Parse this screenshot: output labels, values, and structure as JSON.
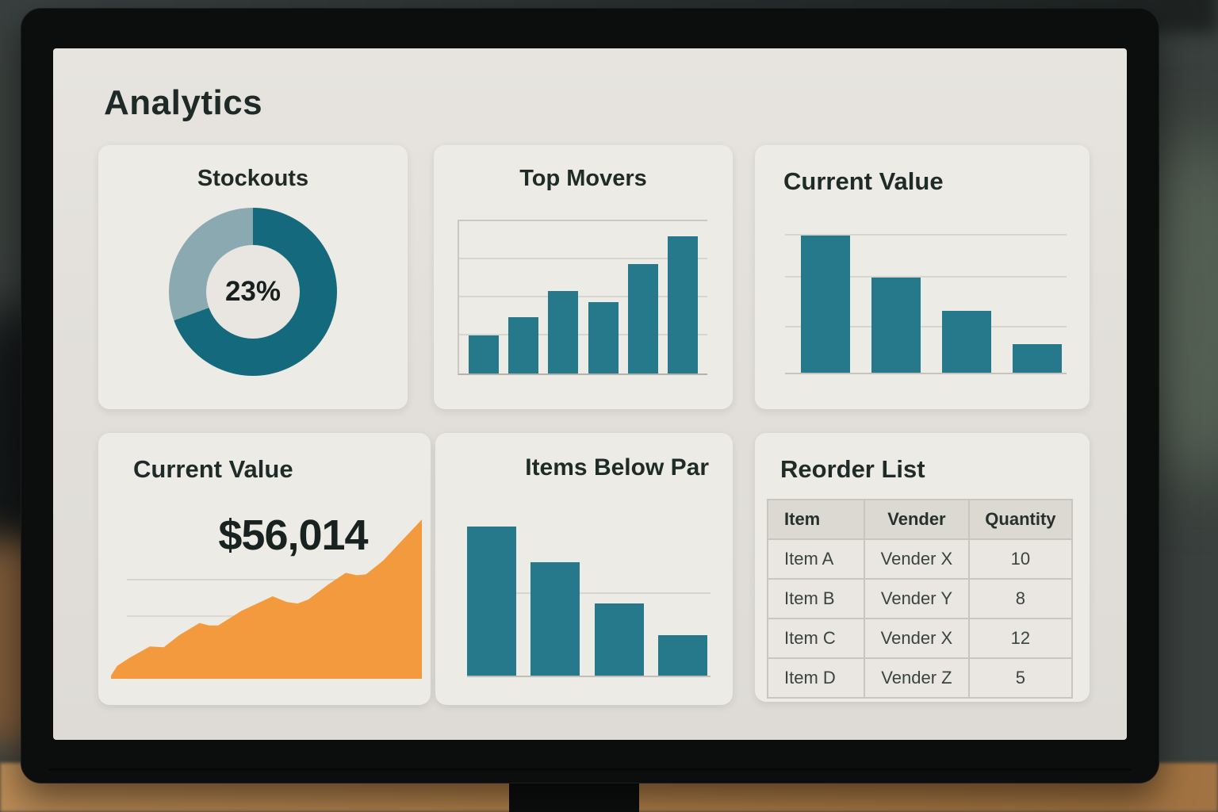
{
  "page": {
    "title": "Analytics"
  },
  "theme": {
    "screen_bg": "#e2dfda",
    "card_bg": "#edebe6",
    "title_color": "#1f2b28",
    "bar_teal": "#26798b",
    "donut_dark_teal": "#14697c",
    "donut_light_slate": "#8aa9b1",
    "area_orange": "#f29a3d",
    "table_header_bg": "#dcd9d3",
    "table_border": "#c9c6c0",
    "bezel_black": "#0c0e0d",
    "desk_wood": "#b28149"
  },
  "cards": {
    "stockouts": {
      "title": "Stockouts",
      "center_label": "23%"
    },
    "top_movers": {
      "title": "Top Movers"
    },
    "current_value_bars": {
      "title": "Current Value"
    },
    "current_value_trend": {
      "title": "Current Value",
      "amount": "$56,014"
    },
    "items_below_par": {
      "title": "Items Below Par"
    },
    "reorder_list": {
      "title": "Reorder List"
    }
  },
  "chart_data": [
    {
      "id": "stockouts_donut",
      "type": "donut",
      "title": "Stockouts",
      "center_label": "23%",
      "labeled_value_pct": 23,
      "start_angle_deg": 0,
      "primary_sweep_deg": 250,
      "segments": [
        {
          "name": "primary",
          "visual_pct": 69,
          "color": "#14697c"
        },
        {
          "name": "secondary",
          "visual_pct": 31,
          "color": "#8aa9b1"
        }
      ]
    },
    {
      "id": "top_movers_bars",
      "type": "bar",
      "title": "Top Movers",
      "values_pct": [
        25,
        37,
        54,
        47,
        72,
        90
      ],
      "ylim": [
        0,
        100
      ],
      "grid": true,
      "gridline_levels_pct": [
        25,
        50,
        75
      ],
      "bar_color": "#26798b"
    },
    {
      "id": "current_value_bars",
      "type": "bar",
      "title": "Current Value",
      "values_pct": [
        91,
        63,
        41,
        19
      ],
      "ylim": [
        0,
        100
      ],
      "grid": true,
      "gridline_levels_pct": [
        30,
        63,
        91
      ],
      "bar_color": "#26798b"
    },
    {
      "id": "current_value_trend",
      "type": "area",
      "title": "Current Value",
      "value_label": "$56,014",
      "fill_color": "#f29a3d",
      "points_norm": [
        [
          0.0,
          0.02
        ],
        [
          0.02,
          0.08
        ],
        [
          0.06,
          0.13
        ],
        [
          0.125,
          0.2
        ],
        [
          0.17,
          0.195
        ],
        [
          0.22,
          0.27
        ],
        [
          0.285,
          0.345
        ],
        [
          0.315,
          0.33
        ],
        [
          0.345,
          0.33
        ],
        [
          0.42,
          0.42
        ],
        [
          0.52,
          0.51
        ],
        [
          0.565,
          0.475
        ],
        [
          0.6,
          0.465
        ],
        [
          0.635,
          0.49
        ],
        [
          0.7,
          0.585
        ],
        [
          0.755,
          0.655
        ],
        [
          0.79,
          0.64
        ],
        [
          0.82,
          0.645
        ],
        [
          0.875,
          0.73
        ],
        [
          1.0,
          0.985
        ]
      ]
    },
    {
      "id": "items_below_par_bars",
      "type": "bar",
      "title": "Items Below Par",
      "values_pct": [
        95,
        72,
        46,
        26
      ],
      "ylim": [
        0,
        100
      ],
      "grid": true,
      "gridline_levels_pct": [
        52
      ],
      "bar_color": "#26798b"
    },
    {
      "id": "reorder_table",
      "type": "table",
      "title": "Reorder List",
      "headers": [
        "Item",
        "Vender",
        "Quantity"
      ],
      "rows": [
        [
          "Item A",
          "Vender X",
          "10"
        ],
        [
          "Item B",
          "Vender Y",
          "8"
        ],
        [
          "Item C",
          "Vender X",
          "12"
        ],
        [
          "Item D",
          "Vender Z",
          "5"
        ]
      ]
    }
  ]
}
